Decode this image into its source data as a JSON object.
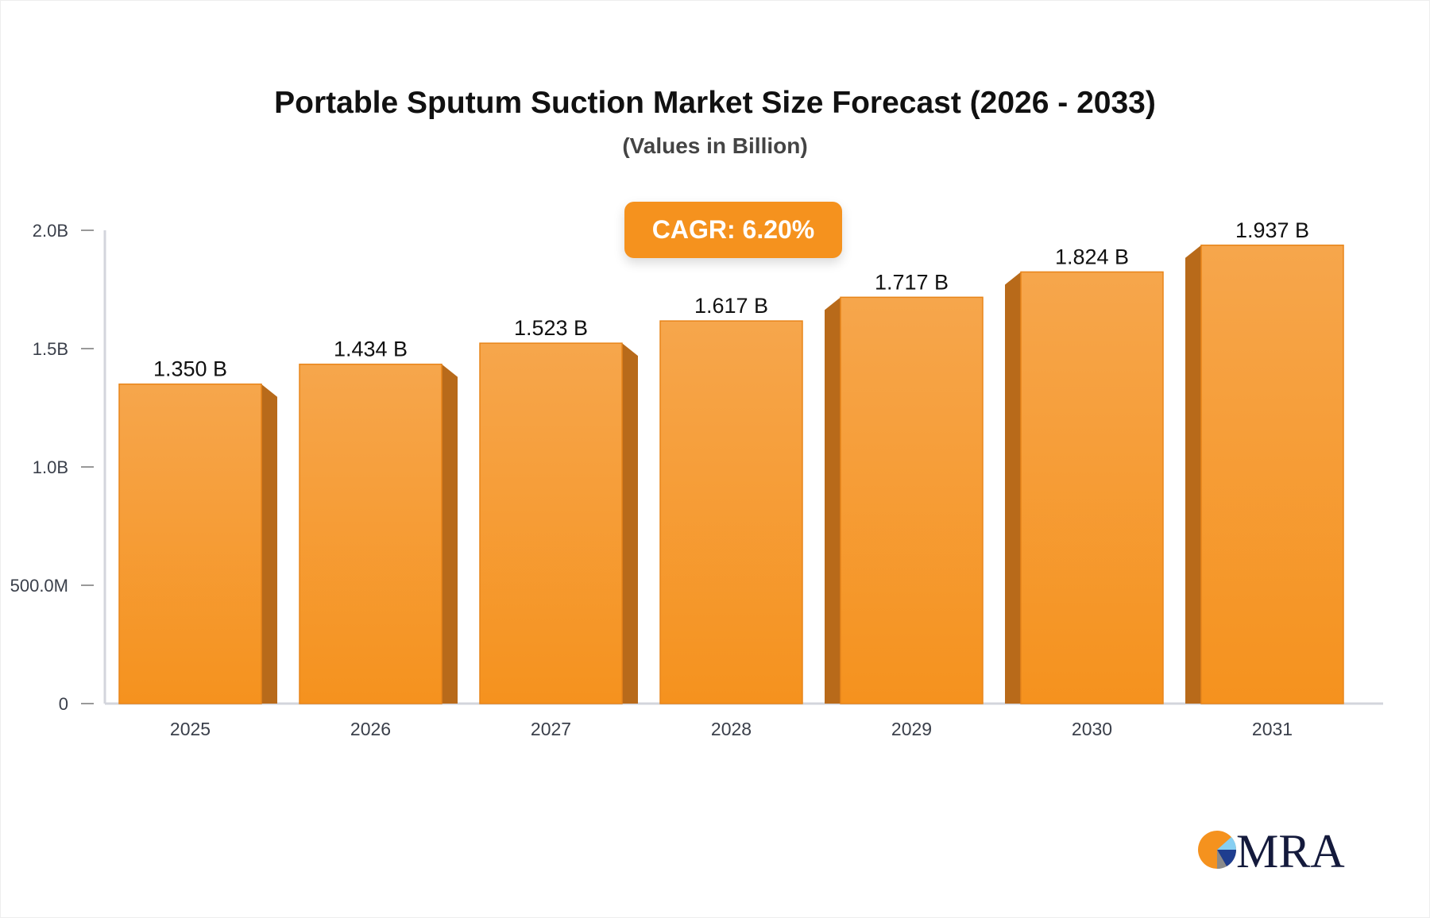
{
  "chart_data": {
    "type": "bar",
    "title": "Portable Sputum Suction Market Size Forecast (2026 - 2033)",
    "subtitle": "(Values in Billion)",
    "annotation": "CAGR: 6.20%",
    "categories": [
      "2025",
      "2026",
      "2027",
      "2028",
      "2029",
      "2030",
      "2031"
    ],
    "values": [
      1.35,
      1.434,
      1.523,
      1.617,
      1.717,
      1.824,
      1.937
    ],
    "data_labels": [
      "1.350 B",
      "1.434 B",
      "1.523 B",
      "1.617 B",
      "1.717 B",
      "1.824 B",
      "1.937 B"
    ],
    "ylim": [
      0,
      2.0
    ],
    "yticks": [
      0,
      0.5,
      1.0,
      1.5,
      2.0
    ],
    "ytick_labels": [
      "0",
      "500.0M",
      "1.0B",
      "1.5B",
      "2.0B"
    ],
    "xlabel": "",
    "ylabel": "",
    "grid": false,
    "colors": {
      "bar": "#f5a142",
      "bar_side": "#b86a1a",
      "accent": "#f5921e"
    }
  },
  "logo": {
    "text": "MRA"
  }
}
